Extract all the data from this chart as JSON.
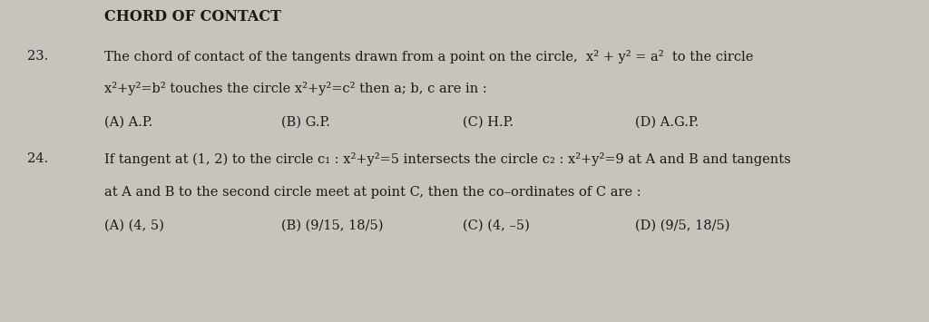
{
  "background_color": "#c8c4bc",
  "title": "CHORD OF CONTACT",
  "q23_label": "23.",
  "q23_line1": "The chord of contact of the tangents drawn from a point on the circle,  x² + y² = a²  to the circle",
  "q23_line2": "x²+y²=b² touches the circle x²+y²=c² then a; b, c are in :",
  "q23_optA": "(A) A.P.",
  "q23_optB": "(B) G.P.",
  "q23_optC": "(C) H.P.",
  "q23_optD": "(D) A.G.P.",
  "q24_label": "24.",
  "q24_line1": "If tangent at (1, 2) to the circle c₁ : x²+y²=5 intersects the circle c₂ : x²+y²=9 at A and B and tangents",
  "q24_line2": "at A and B to the second circle meet at point C, then the co–ordinates of C are :",
  "q24_optA": "(A) (4, 5)",
  "q24_optB": "(B) (9/15, 18/5)",
  "q24_optC": "(C) (4, –5)",
  "q24_optD": "(D) (9/5, 18/5)",
  "text_color": "#1a1a1a",
  "font_size_title": 11.5,
  "font_size_body": 10.5,
  "fig_width": 10.24,
  "fig_height": 3.55,
  "dpi": 100
}
